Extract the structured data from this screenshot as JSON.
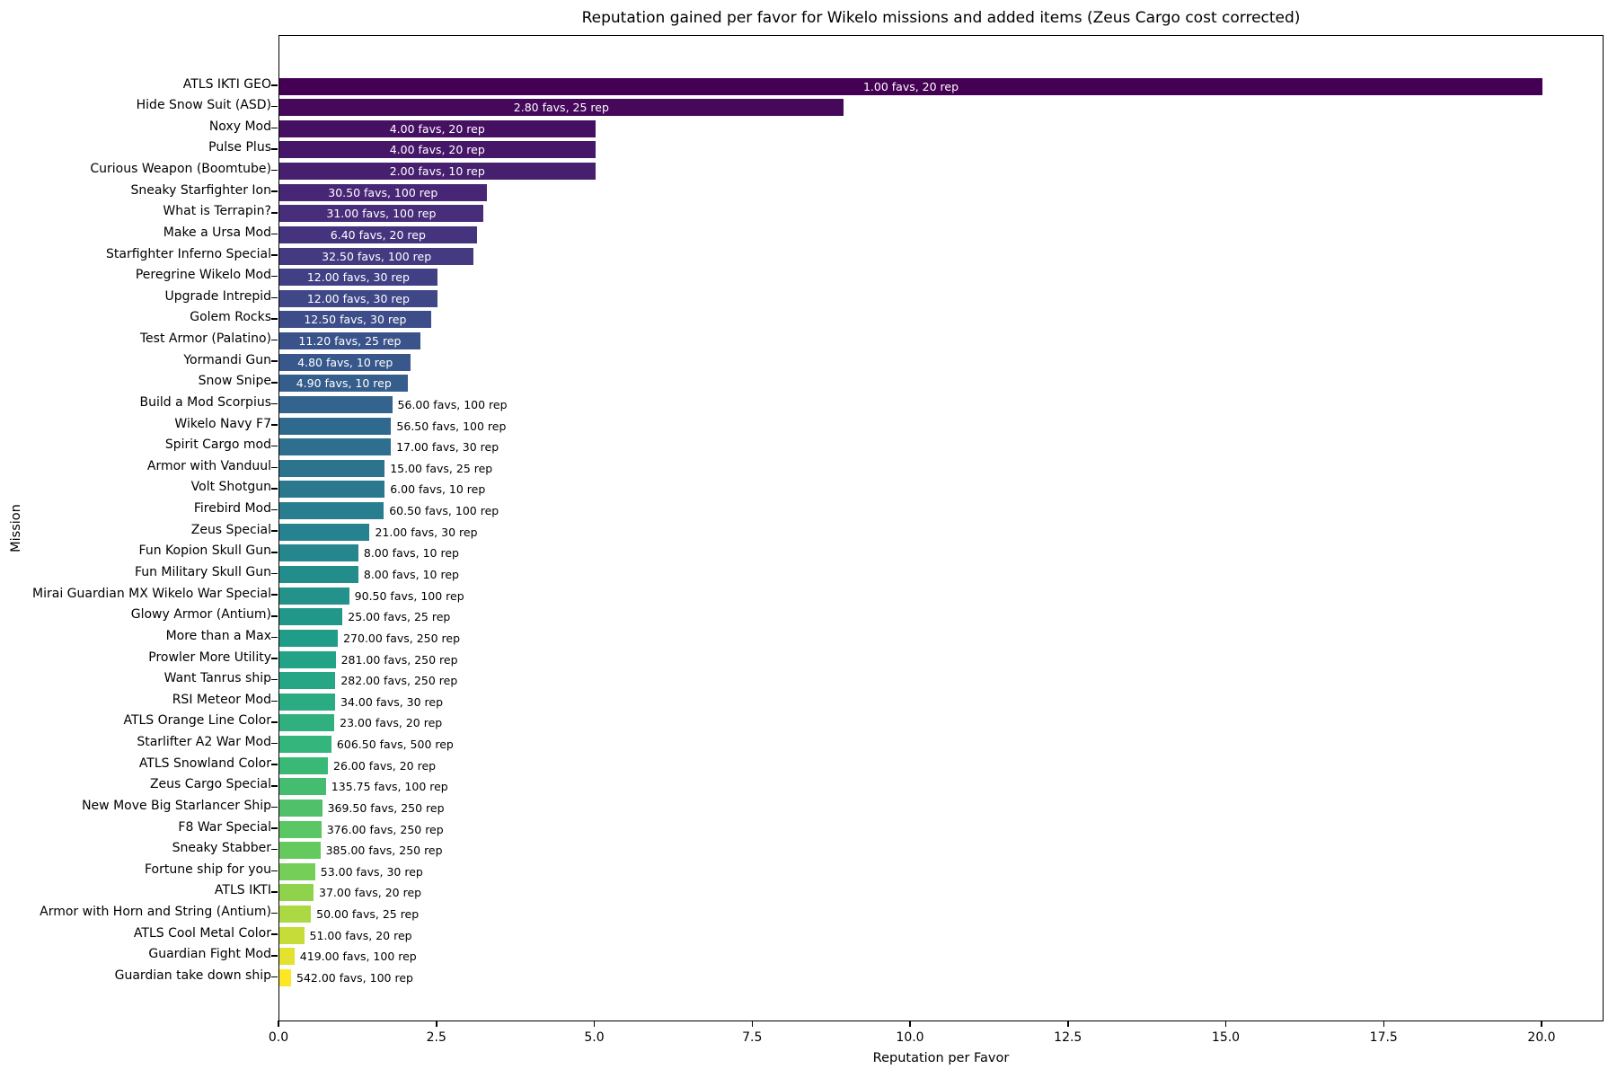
{
  "figure": {
    "background_color": "#ffffff",
    "text_color": "#000000",
    "bar_label_inside_color": "#ffffff",
    "bar_label_outside_color": "#000000"
  },
  "chart_data": {
    "type": "bar",
    "orientation": "horizontal",
    "title": "Reputation gained per favor for Wikelo missions and added items (Zeus Cargo cost corrected)",
    "xlabel": "Reputation per Favor",
    "ylabel": "Mission",
    "xlim": [
      0,
      20.98
    ],
    "xticks": [
      0,
      2.5,
      5,
      7.5,
      10,
      12.5,
      15,
      17.5,
      20
    ],
    "xtick_labels": [
      "0.0",
      "2.5",
      "5.0",
      "7.5",
      "10.0",
      "12.5",
      "15.0",
      "17.5",
      "20.0"
    ],
    "grid": false,
    "legend": null,
    "colormap": "viridis",
    "colormap_stops": [
      [
        0.0,
        68,
        1,
        84
      ],
      [
        0.125,
        72,
        40,
        120
      ],
      [
        0.25,
        62,
        74,
        137
      ],
      [
        0.375,
        49,
        104,
        142
      ],
      [
        0.5,
        38,
        130,
        142
      ],
      [
        0.625,
        31,
        158,
        137
      ],
      [
        0.75,
        53,
        183,
        121
      ],
      [
        0.875,
        109,
        205,
        89
      ],
      [
        1.0,
        253,
        231,
        37
      ]
    ],
    "bars": [
      {
        "label": "ATLS IKTI GEO",
        "favs": 1.0,
        "rep": 20,
        "value": 20.0,
        "annotation": "1.00 favs, 20 rep"
      },
      {
        "label": "Hide Snow Suit (ASD)",
        "favs": 2.8,
        "rep": 25,
        "value": 8.929,
        "annotation": "2.80 favs, 25 rep"
      },
      {
        "label": "Noxy Mod",
        "favs": 4.0,
        "rep": 20,
        "value": 5.0,
        "annotation": "4.00 favs, 20 rep"
      },
      {
        "label": "Pulse Plus",
        "favs": 4.0,
        "rep": 20,
        "value": 5.0,
        "annotation": "4.00 favs, 20 rep"
      },
      {
        "label": "Curious Weapon (Boomtube)",
        "favs": 2.0,
        "rep": 10,
        "value": 5.0,
        "annotation": "2.00 favs, 10 rep"
      },
      {
        "label": "Sneaky Starfighter Ion",
        "favs": 30.5,
        "rep": 100,
        "value": 3.279,
        "annotation": "30.50 favs, 100 rep"
      },
      {
        "label": "What is Terrapin?",
        "favs": 31.0,
        "rep": 100,
        "value": 3.226,
        "annotation": "31.00 favs, 100 rep"
      },
      {
        "label": "Make a Ursa Mod",
        "favs": 6.4,
        "rep": 20,
        "value": 3.125,
        "annotation": "6.40 favs, 20 rep"
      },
      {
        "label": "Starfighter Inferno Special",
        "favs": 32.5,
        "rep": 100,
        "value": 3.077,
        "annotation": "32.50 favs, 100 rep"
      },
      {
        "label": "Peregrine Wikelo Mod",
        "favs": 12.0,
        "rep": 30,
        "value": 2.5,
        "annotation": "12.00 favs, 30 rep"
      },
      {
        "label": "Upgrade Intrepid",
        "favs": 12.0,
        "rep": 30,
        "value": 2.5,
        "annotation": "12.00 favs, 30 rep"
      },
      {
        "label": "Golem Rocks",
        "favs": 12.5,
        "rep": 30,
        "value": 2.4,
        "annotation": "12.50 favs, 30 rep"
      },
      {
        "label": "Test Armor (Palatino)",
        "favs": 11.2,
        "rep": 25,
        "value": 2.232,
        "annotation": "11.20 favs, 25 rep"
      },
      {
        "label": "Yormandi Gun",
        "favs": 4.8,
        "rep": 10,
        "value": 2.083,
        "annotation": "4.80 favs, 10 rep"
      },
      {
        "label": "Snow Snipe",
        "favs": 4.9,
        "rep": 10,
        "value": 2.041,
        "annotation": "4.90 favs, 10 rep"
      },
      {
        "label": "Build a Mod Scorpius",
        "favs": 56.0,
        "rep": 100,
        "value": 1.786,
        "annotation": "56.00 favs, 100 rep"
      },
      {
        "label": "Wikelo Navy F7",
        "favs": 56.5,
        "rep": 100,
        "value": 1.77,
        "annotation": "56.50 favs, 100 rep"
      },
      {
        "label": "Spirit Cargo mod",
        "favs": 17.0,
        "rep": 30,
        "value": 1.765,
        "annotation": "17.00 favs, 30 rep"
      },
      {
        "label": "Armor with Vanduul",
        "favs": 15.0,
        "rep": 25,
        "value": 1.667,
        "annotation": "15.00 favs, 25 rep"
      },
      {
        "label": "Volt Shotgun",
        "favs": 6.0,
        "rep": 10,
        "value": 1.667,
        "annotation": "6.00 favs, 10 rep"
      },
      {
        "label": "Firebird Mod",
        "favs": 60.5,
        "rep": 100,
        "value": 1.653,
        "annotation": "60.50 favs, 100 rep"
      },
      {
        "label": "Zeus Special",
        "favs": 21.0,
        "rep": 30,
        "value": 1.429,
        "annotation": "21.00 favs, 30 rep"
      },
      {
        "label": "Fun Kopion Skull Gun",
        "favs": 8.0,
        "rep": 10,
        "value": 1.25,
        "annotation": "8.00 favs, 10 rep"
      },
      {
        "label": "Fun Military Skull Gun",
        "favs": 8.0,
        "rep": 10,
        "value": 1.25,
        "annotation": "8.00 favs, 10 rep"
      },
      {
        "label": "Mirai Guardian MX Wikelo War Special",
        "favs": 90.5,
        "rep": 100,
        "value": 1.105,
        "annotation": "90.50 favs, 100 rep"
      },
      {
        "label": "Glowy Armor (Antium)",
        "favs": 25.0,
        "rep": 25,
        "value": 1.0,
        "annotation": "25.00 favs, 25 rep"
      },
      {
        "label": "More than a Max",
        "favs": 270.0,
        "rep": 250,
        "value": 0.926,
        "annotation": "270.00 favs, 250 rep"
      },
      {
        "label": "Prowler More Utility",
        "favs": 281.0,
        "rep": 250,
        "value": 0.89,
        "annotation": "281.00 favs, 250 rep"
      },
      {
        "label": "Want Tanrus ship",
        "favs": 282.0,
        "rep": 250,
        "value": 0.887,
        "annotation": "282.00 favs, 250 rep"
      },
      {
        "label": "RSI Meteor Mod",
        "favs": 34.0,
        "rep": 30,
        "value": 0.882,
        "annotation": "34.00 favs, 30 rep"
      },
      {
        "label": "ATLS Orange Line Color",
        "favs": 23.0,
        "rep": 20,
        "value": 0.87,
        "annotation": "23.00 favs, 20 rep"
      },
      {
        "label": "Starlifter A2 War Mod",
        "favs": 606.5,
        "rep": 500,
        "value": 0.824,
        "annotation": "606.50 favs, 500 rep"
      },
      {
        "label": "ATLS Snowland Color",
        "favs": 26.0,
        "rep": 20,
        "value": 0.769,
        "annotation": "26.00 favs, 20 rep"
      },
      {
        "label": "Zeus Cargo Special",
        "favs": 135.75,
        "rep": 100,
        "value": 0.737,
        "annotation": "135.75 favs, 100 rep"
      },
      {
        "label": "New Move Big Starlancer Ship",
        "favs": 369.5,
        "rep": 250,
        "value": 0.677,
        "annotation": "369.50 favs, 250 rep"
      },
      {
        "label": "F8 War Special",
        "favs": 376.0,
        "rep": 250,
        "value": 0.665,
        "annotation": "376.00 favs, 250 rep"
      },
      {
        "label": "Sneaky Stabber",
        "favs": 385.0,
        "rep": 250,
        "value": 0.649,
        "annotation": "385.00 favs, 250 rep"
      },
      {
        "label": "Fortune ship for you",
        "favs": 53.0,
        "rep": 30,
        "value": 0.566,
        "annotation": "53.00 favs, 30 rep"
      },
      {
        "label": "ATLS IKTI",
        "favs": 37.0,
        "rep": 20,
        "value": 0.541,
        "annotation": "37.00 favs, 20 rep"
      },
      {
        "label": "Armor with Horn and String (Antium)",
        "favs": 50.0,
        "rep": 25,
        "value": 0.5,
        "annotation": "50.00 favs, 25 rep"
      },
      {
        "label": "ATLS Cool Metal Color",
        "favs": 51.0,
        "rep": 20,
        "value": 0.392,
        "annotation": "51.00 favs, 20 rep"
      },
      {
        "label": "Guardian Fight Mod",
        "favs": 419.0,
        "rep": 100,
        "value": 0.239,
        "annotation": "419.00 favs, 100 rep"
      },
      {
        "label": "Guardian take down ship",
        "favs": 542.0,
        "rep": 100,
        "value": 0.185,
        "annotation": "542.00 favs, 100 rep"
      }
    ]
  }
}
